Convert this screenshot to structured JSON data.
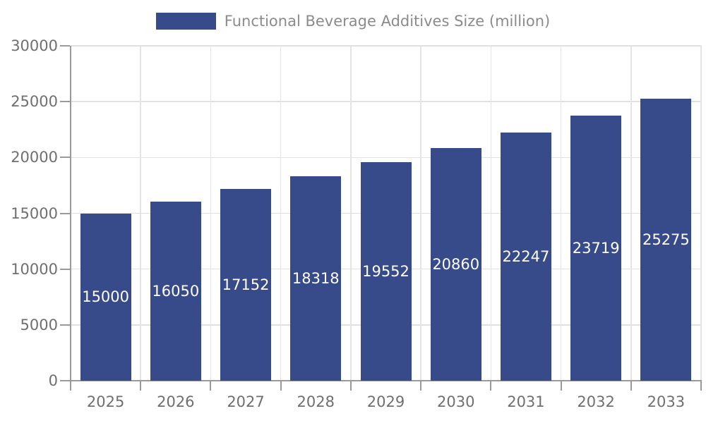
{
  "chart_data": {
    "type": "bar",
    "title": "Functional Beverage Additives Size (million)",
    "categories": [
      "2025",
      "2026",
      "2027",
      "2028",
      "2029",
      "2030",
      "2031",
      "2032",
      "2033"
    ],
    "values": [
      15000,
      16050,
      17152,
      18318,
      19552,
      20860,
      22247,
      23719,
      25275
    ],
    "xlabel": "",
    "ylabel": "",
    "ylim": [
      0,
      30000
    ],
    "ytick_step": 5000,
    "ytick_labels": [
      "0",
      "5000",
      "10000",
      "15000",
      "20000",
      "25000",
      "30000"
    ],
    "grid": true,
    "legend_position": "top",
    "bar_label_position": "inside-center",
    "colors": {
      "bar": "#374A89",
      "bar_label": "#ffffff",
      "axis_line": "#9a9a9a",
      "grid_horizontal": "#e0e0e0",
      "grid_vertical": "#e4e4e4",
      "axis_label": "#6f6f6f",
      "legend_text": "#8b8b8b",
      "background": "#ffffff"
    }
  }
}
